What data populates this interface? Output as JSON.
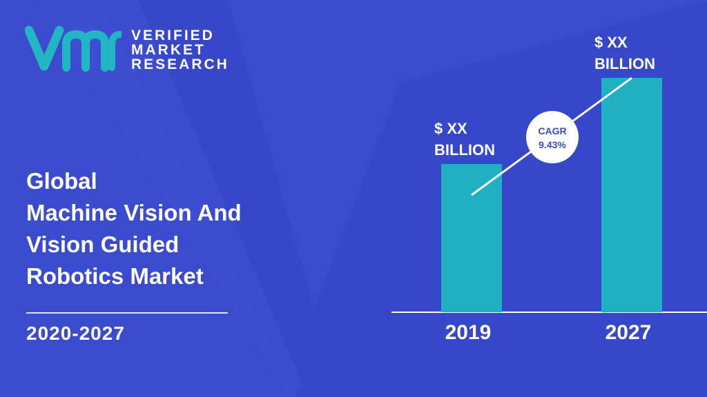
{
  "brand": {
    "name_lines": [
      "VERIFIED",
      "MARKET",
      "RESEARCH"
    ],
    "logo_icon": "vmr-logo-icon",
    "accent_color": "#22b5c2"
  },
  "title_lines": [
    "Global",
    "Machine Vision And",
    "Vision Guided",
    "Robotics Market"
  ],
  "period": "2020-2027",
  "colors": {
    "background": "#3a4bd0",
    "bar": "#1fb0c3",
    "text": "#ffffff",
    "cagr_badge_text": "#3a4bd0"
  },
  "chart_data": {
    "type": "bar",
    "categories": [
      "2019",
      "2027"
    ],
    "values": [
      215,
      340
    ],
    "value_labels": [
      [
        "$ XX",
        "BILLION"
      ],
      [
        "$ XX",
        "BILLION"
      ]
    ],
    "cagr_label": [
      "CAGR",
      "9.43%"
    ],
    "ylim": [
      0,
      380
    ],
    "title": "",
    "xlabel": "",
    "ylabel": "",
    "grid": false
  }
}
